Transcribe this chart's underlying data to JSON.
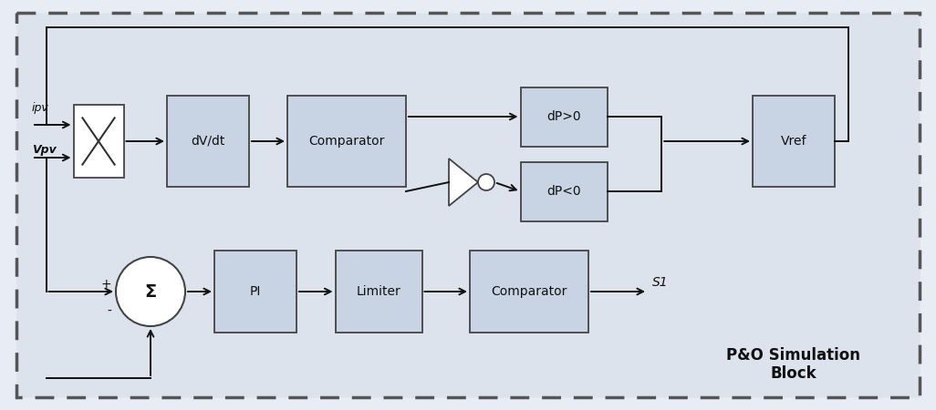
{
  "bg_color": "#dce3ed",
  "block_face_color": "#c8d3e3",
  "block_edge_color": "#444444",
  "outer_bg": "#e8edf5",
  "title": "P&O Simulation\nBlock",
  "title_fontsize": 12,
  "text_color": "#111111",
  "line_color": "#111111",
  "note_ipv": "ipv",
  "note_vpv": "Vpv",
  "note_s1": "S1"
}
